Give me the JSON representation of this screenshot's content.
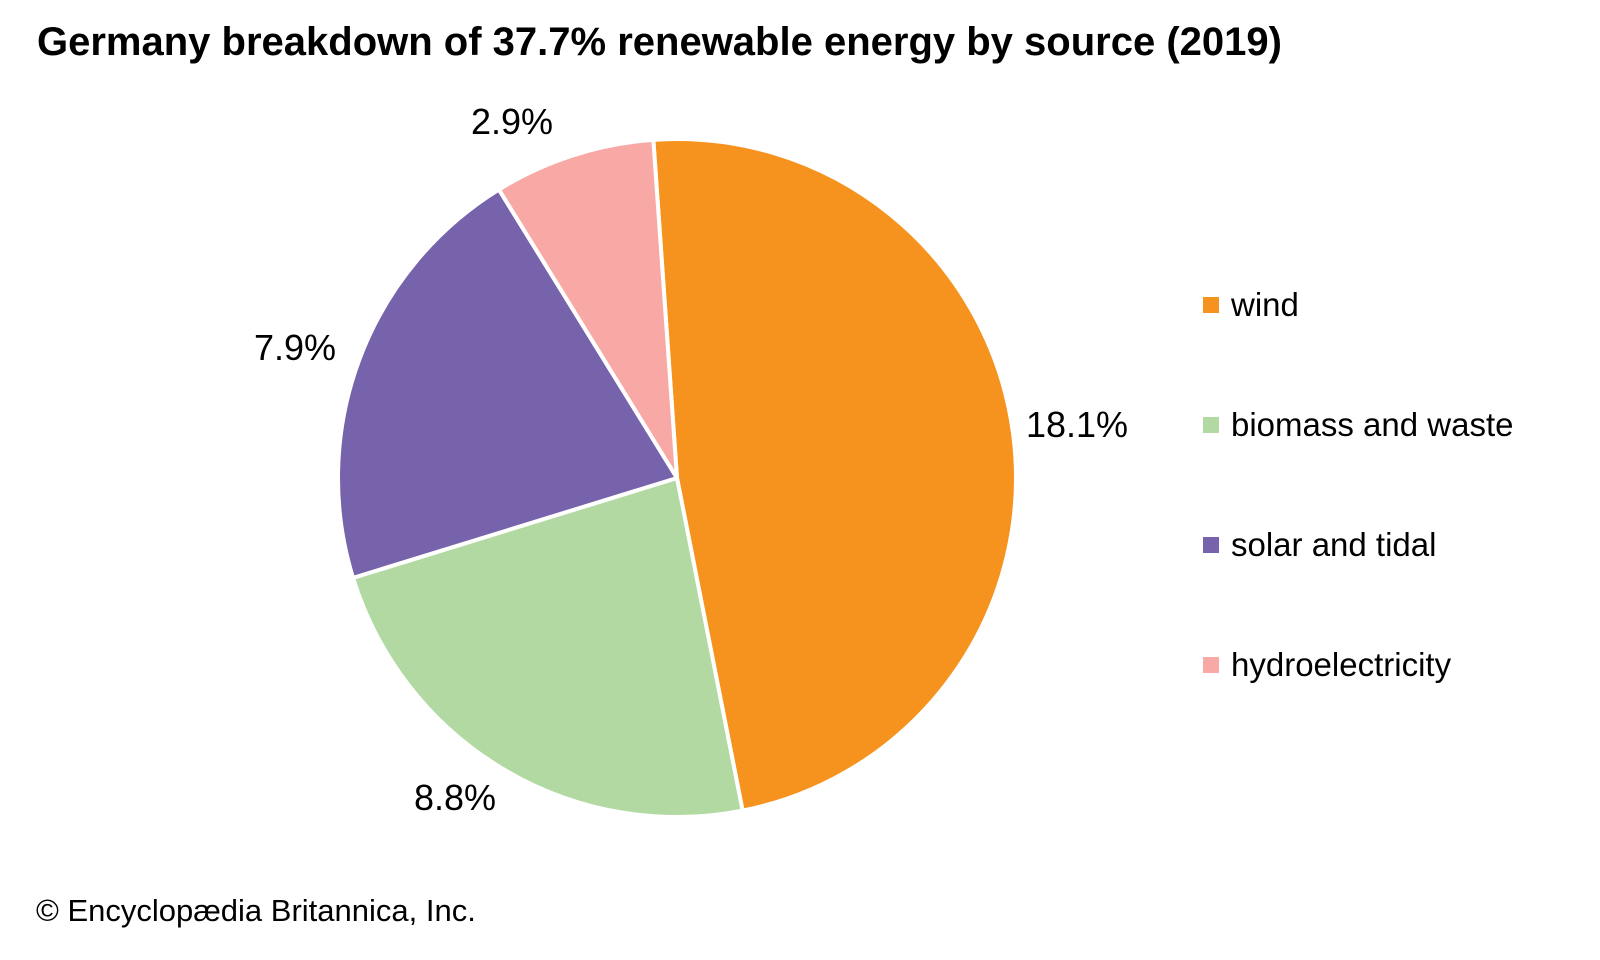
{
  "title": "Germany breakdown of 37.7% renewable energy by source (2019)",
  "footer": "© Encyclopædia Britannica, Inc.",
  "chart_data": {
    "type": "pie",
    "title": "Germany breakdown of 37.7% renewable energy by source (2019)",
    "unit": "%",
    "start_angle_deg": -4,
    "direction": "clockwise",
    "legend_position": "right",
    "slices": [
      {
        "name": "wind",
        "value": 18.1,
        "label": "18.1%",
        "color": "#F6921E"
      },
      {
        "name": "biomass and waste",
        "value": 8.8,
        "label": "8.8%",
        "color": "#B2D9A2"
      },
      {
        "name": "solar and tidal",
        "value": 7.9,
        "label": "7.9%",
        "color": "#7663AC"
      },
      {
        "name": "hydroelectricity",
        "value": 2.9,
        "label": "2.9%",
        "color": "#F8A9A6"
      }
    ]
  }
}
